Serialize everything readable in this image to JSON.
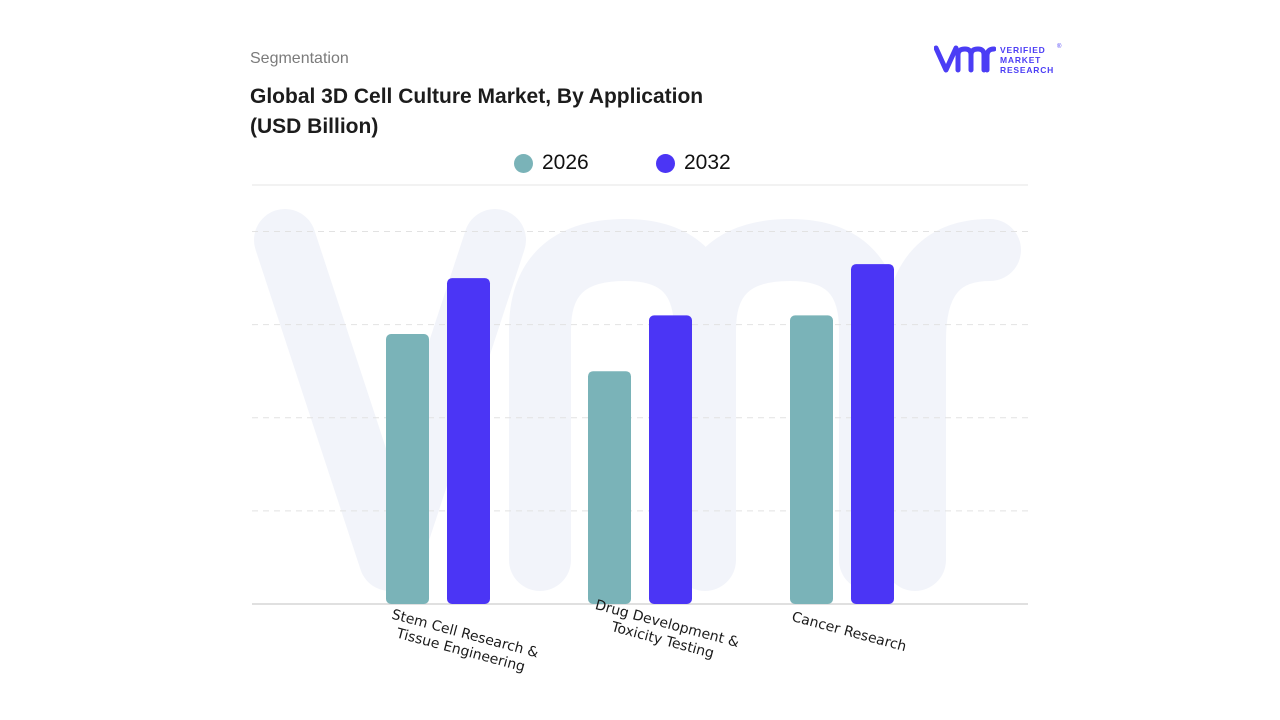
{
  "header": {
    "section": "Segmentation",
    "title_line1": "Global 3D Cell Culture Market, By Application",
    "title_line2": "(USD Billion)"
  },
  "logo": {
    "line1": "VERIFIED",
    "line2": "MARKET",
    "line3": "RESEARCH",
    "registered": "®"
  },
  "colors": {
    "series_2026": "#7ab3b8",
    "series_2032": "#4b35f5",
    "watermark": "#e8ebf6",
    "grid": "#e2e2e2"
  },
  "chart_data": {
    "type": "bar",
    "title": "Global 3D Cell Culture Market, By Application (USD Billion)",
    "categories": [
      [
        "Stem Cell Research &",
        "Tissue Engineering"
      ],
      [
        "Drug Development &",
        "Toxicity Testing"
      ],
      [
        "Cancer Research"
      ]
    ],
    "series": [
      {
        "name": "2026",
        "values": [
          2.9,
          2.5,
          3.1
        ]
      },
      {
        "name": "2032",
        "values": [
          3.5,
          3.1,
          3.65
        ]
      }
    ],
    "ylim": [
      0,
      4.5
    ],
    "grid": true,
    "legend": "top-center",
    "xlabel": "",
    "ylabel": ""
  }
}
